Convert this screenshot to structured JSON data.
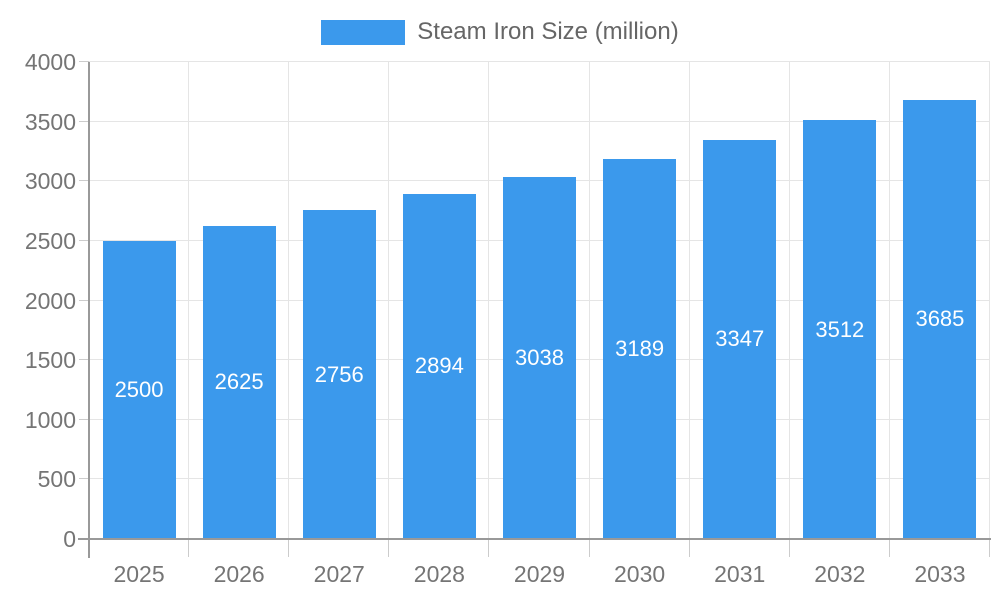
{
  "page": {
    "background": "#ffffff"
  },
  "legend": {
    "label": "Steam Iron Size (million)"
  },
  "chart_data": {
    "type": "bar",
    "title": "Steam Iron Size (million)",
    "series_name": "Steam Iron Size (million)",
    "categories": [
      "2025",
      "2026",
      "2027",
      "2028",
      "2029",
      "2030",
      "2031",
      "2032",
      "2033"
    ],
    "values": [
      2500,
      2625,
      2756,
      2894,
      3038,
      3189,
      3347,
      3512,
      3685
    ],
    "bar_labels": [
      "2500",
      "2625",
      "2756",
      "2894",
      "3038",
      "3189",
      "3347",
      "3512",
      "3685"
    ],
    "xlabel": "",
    "ylabel": "",
    "ylim": [
      0,
      4000
    ],
    "yticks": [
      0,
      500,
      1000,
      1500,
      2000,
      2500,
      3000,
      3500,
      4000
    ],
    "grid": true,
    "legend_position": "top",
    "colors": {
      "bar": "#3B99EC",
      "bar_label": "#ffffff",
      "grid": "#e5e5e5",
      "axis": "#999999",
      "tick": "#cccccc",
      "tick_label": "#757575",
      "legend_text": "#666666"
    }
  }
}
